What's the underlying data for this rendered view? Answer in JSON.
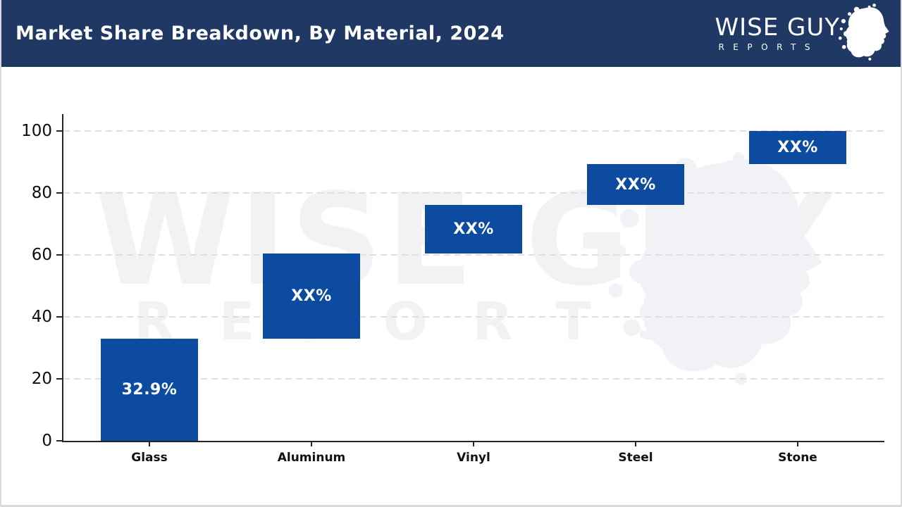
{
  "header": {
    "title": "Market Share Breakdown, By Material, 2024",
    "logo": {
      "name": "WISE GUY",
      "subtitle": "REPORTS"
    }
  },
  "watermark": {
    "name": "WISE GUY",
    "subtitle": "REPORTS"
  },
  "colors": {
    "header_bg": "#1f3864",
    "bar": "#0c4b9f",
    "grid": "#dfdfdf",
    "axis": "#262626",
    "watermark": "#f2f2f5"
  },
  "chart_data": {
    "type": "bar",
    "subtype": "waterfall",
    "title": "Market Share Breakdown, By Material, 2024",
    "categories": [
      "Glass",
      "Aluminum",
      "Vinyl",
      "Steel",
      "Stone"
    ],
    "segments": [
      {
        "category": "Glass",
        "start": 0,
        "end": 32.9,
        "label": "32.9%"
      },
      {
        "category": "Aluminum",
        "start": 32.9,
        "end": 60.4,
        "label": "XX%"
      },
      {
        "category": "Vinyl",
        "start": 60.4,
        "end": 76.1,
        "label": "XX%"
      },
      {
        "category": "Steel",
        "start": 76.1,
        "end": 89.3,
        "label": "XX%"
      },
      {
        "category": "Stone",
        "start": 89.3,
        "end": 100,
        "label": "XX%"
      }
    ],
    "xlabel": "",
    "ylabel": "",
    "y_ticks": [
      0,
      20,
      40,
      60,
      80,
      100
    ],
    "ylim": [
      0,
      105
    ],
    "grid": "horizontal-dashed",
    "legend": "none",
    "bar_color": "#0c4b9f",
    "bar_label_color": "#ffffff"
  }
}
